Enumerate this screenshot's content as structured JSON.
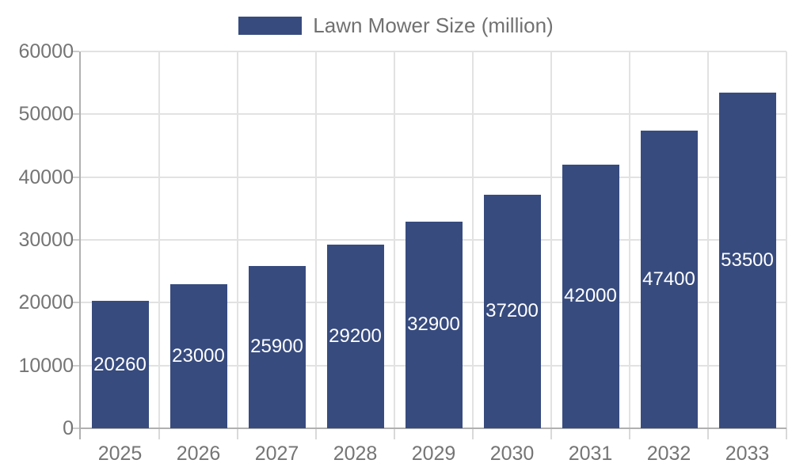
{
  "legend": {
    "label": "Lawn Mower Size (million)"
  },
  "colors": {
    "bar": "#374b7e",
    "grid": "#e2e2e2",
    "axis": "#b0b0b0",
    "tick": "#d9d9d9",
    "tick_text": "#757575",
    "value_label": "#ffffff",
    "legend_text": "#717171",
    "background": "#ffffff"
  },
  "chart_data": {
    "type": "bar",
    "title": "Lawn Mower Size (million)",
    "series_name": "Lawn Mower Size (million)",
    "categories": [
      "2025",
      "2026",
      "2027",
      "2028",
      "2029",
      "2030",
      "2031",
      "2032",
      "2033"
    ],
    "values": [
      20260,
      23000,
      25900,
      29200,
      32900,
      37200,
      42000,
      47400,
      53500
    ],
    "xlabel": "",
    "ylabel": "",
    "ylim": [
      0,
      60000
    ],
    "yticks": [
      0,
      10000,
      20000,
      30000,
      40000,
      50000,
      60000
    ],
    "grid": true,
    "legend_position": "top",
    "value_label_position": "inside-center"
  }
}
